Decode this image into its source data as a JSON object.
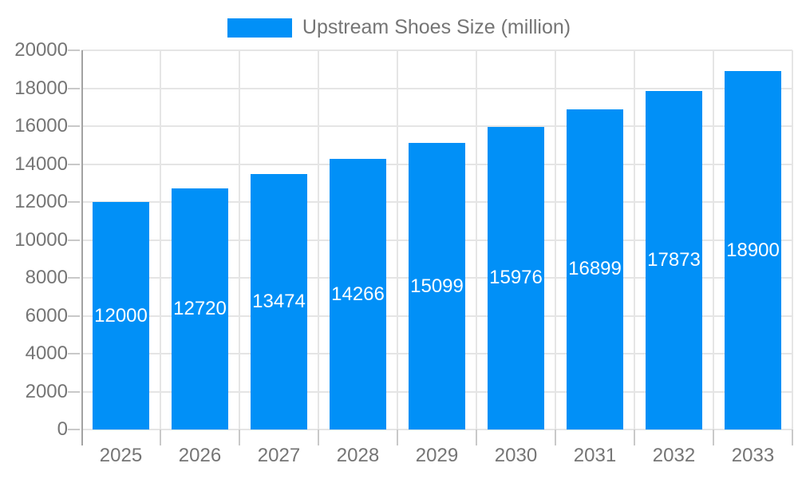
{
  "legend": {
    "items": [
      {
        "label": "Upstream Shoes Size (million)",
        "swatch_color": "#0190F7"
      }
    ]
  },
  "chart_data": {
    "type": "bar",
    "title": "Upstream Shoes Size (million)",
    "categories": [
      "2025",
      "2026",
      "2027",
      "2028",
      "2029",
      "2030",
      "2031",
      "2032",
      "2033"
    ],
    "values": [
      12000,
      12720,
      13474,
      14266,
      15099,
      15976,
      16899,
      17873,
      18900
    ],
    "xlabel": "",
    "ylabel": "",
    "ylim": [
      0,
      20000
    ],
    "ytick_step": 2000,
    "yticks": [
      0,
      2000,
      4000,
      6000,
      8000,
      10000,
      12000,
      14000,
      16000,
      18000,
      20000
    ],
    "grid": true,
    "legend_position": "top-center",
    "value_labels": "inside-center",
    "colors": {
      "bar": "#0190F7",
      "grid": "#e5e5e5",
      "axis_line": "#a3a3a3",
      "tick": "#c9c9c9",
      "axis_text": "#757575",
      "value_label": "#ffffff"
    }
  }
}
